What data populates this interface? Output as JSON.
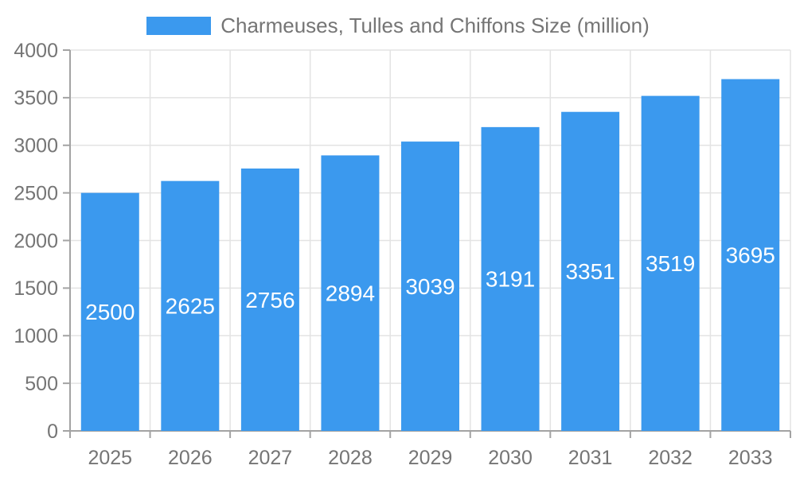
{
  "chart_data": {
    "type": "bar",
    "title": "Charmeuses, Tulles and Chiffons Size (million)",
    "legend": "Charmeuses, Tulles and Chiffons Size (million)",
    "legend_position": "top",
    "categories": [
      "2025",
      "2026",
      "2027",
      "2028",
      "2029",
      "2030",
      "2031",
      "2032",
      "2033"
    ],
    "values": [
      2500,
      2625,
      2756,
      2894,
      3039,
      3191,
      3351,
      3519,
      3695
    ],
    "xlabel": "",
    "ylabel": "",
    "ylim": [
      0,
      4000
    ],
    "y_ticks": [
      0,
      500,
      1000,
      1500,
      2000,
      2500,
      3000,
      3500,
      4000
    ],
    "grid": true,
    "bar_label_position": "middle",
    "colors": {
      "bar": "#3B99EE",
      "bar_label": "#FFFFFF",
      "axis_line": "#A3A3A3",
      "grid_line": "#E3E3E3",
      "text": "#757575",
      "background": "#FFFFFF"
    }
  }
}
